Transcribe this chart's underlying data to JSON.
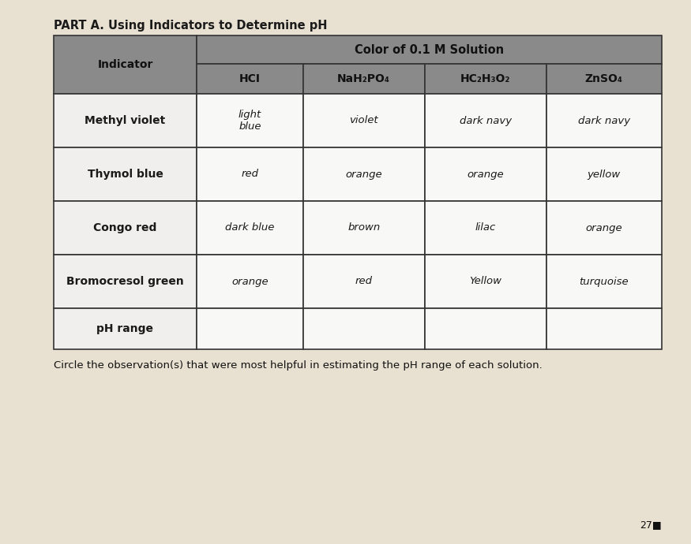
{
  "title": "PART A. Using Indicators to Determine pH",
  "subtitle": "Color of 0.1 M Solution",
  "footer": "Circle the observation(s) that were most helpful in estimating the pH range of each solution.",
  "page_number": "27■",
  "col_headers": [
    "Indicator",
    "HCI",
    "NaH₂PO₄",
    "HC₂H₃O₂",
    "ZnSO₄"
  ],
  "rows": [
    [
      "Methyl violet",
      "light\nblue",
      "violet",
      "dark navy",
      "dark navy"
    ],
    [
      "Thymol blue",
      "red",
      "orange",
      "orange",
      "yellow"
    ],
    [
      "Congo red",
      "dark blue",
      "brown",
      "lilac",
      "orange"
    ],
    [
      "Bromocresol green",
      "orange",
      "red",
      "Yellow",
      "turquoise"
    ],
    [
      "pH range",
      "",
      "",
      "",
      ""
    ]
  ],
  "bg_color": "#e8e0d0",
  "header_bg": "#909090",
  "cell_bg_light": "#f0f0f0",
  "cell_bg_white": "#ffffff"
}
